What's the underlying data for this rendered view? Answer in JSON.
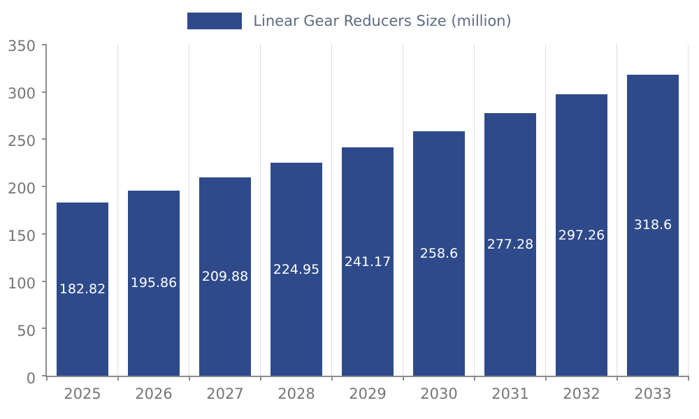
{
  "chart_data": {
    "type": "bar",
    "title": "Linear Gear Reducers Size (million)",
    "categories": [
      "2025",
      "2026",
      "2027",
      "2028",
      "2029",
      "2030",
      "2031",
      "2032",
      "2033"
    ],
    "values": [
      182.82,
      195.86,
      209.88,
      224.95,
      241.17,
      258.6,
      277.28,
      297.26,
      318.6
    ],
    "xlabel": "",
    "ylabel": "",
    "ylim": [
      0,
      350
    ],
    "ytick_step": 50,
    "grid": "vertical-only",
    "legend_position": "top-center",
    "colors": {
      "bar": "#2e4a8b",
      "bar_value_label": "#ffffff",
      "axis_line": "#8c8c8c",
      "grid_line": "#dcdcdc",
      "axis_text": "#757575",
      "legend_text": "#5d6b80"
    }
  }
}
